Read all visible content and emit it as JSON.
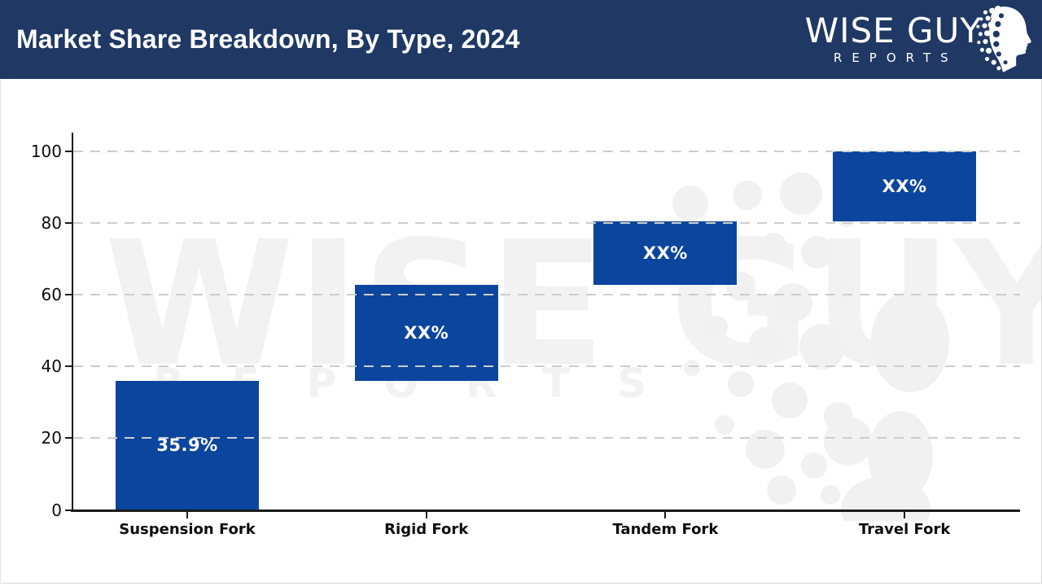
{
  "header": {
    "title": "Market Share Breakdown, By Type, 2024",
    "logo": {
      "line1": "WISE GUY",
      "line2": "REPORTS"
    }
  },
  "watermark": {
    "line1": "WISE GUY",
    "line2": "REPORTS"
  },
  "colors": {
    "header_bg": "#1F3864",
    "bar": "#0C459E",
    "grid": "#cdcdcd",
    "axis": "#1a1a1a",
    "bar_label": "#ffffff",
    "watermark": "#f2f2f2"
  },
  "chart_data": {
    "type": "bar",
    "subtype": "waterfall",
    "title": "Market Share Breakdown, By Type, 2024",
    "xlabel": "",
    "ylabel": "",
    "categories": [
      "Suspension Fork",
      "Rigid Fork",
      "Tandem Fork",
      "Travel Fork"
    ],
    "segments": [
      {
        "category": "Suspension Fork",
        "start": 0,
        "end": 35.9,
        "label": "35.9%"
      },
      {
        "category": "Rigid Fork",
        "start": 35.9,
        "end": 62.6,
        "label": "XX%"
      },
      {
        "category": "Tandem Fork",
        "start": 62.6,
        "end": 80.5,
        "label": "XX%"
      },
      {
        "category": "Travel Fork",
        "start": 80.5,
        "end": 100,
        "label": "XX%"
      }
    ],
    "shown_values": {
      "Suspension Fork": "35.9%",
      "Rigid Fork": "XX%",
      "Tandem Fork": "XX%",
      "Travel Fork": "XX%"
    },
    "y_ticks": [
      0,
      20,
      40,
      60,
      80,
      100
    ],
    "ylim": [
      0,
      105
    ],
    "grid": "dashed-horizontal",
    "legend": "none"
  }
}
